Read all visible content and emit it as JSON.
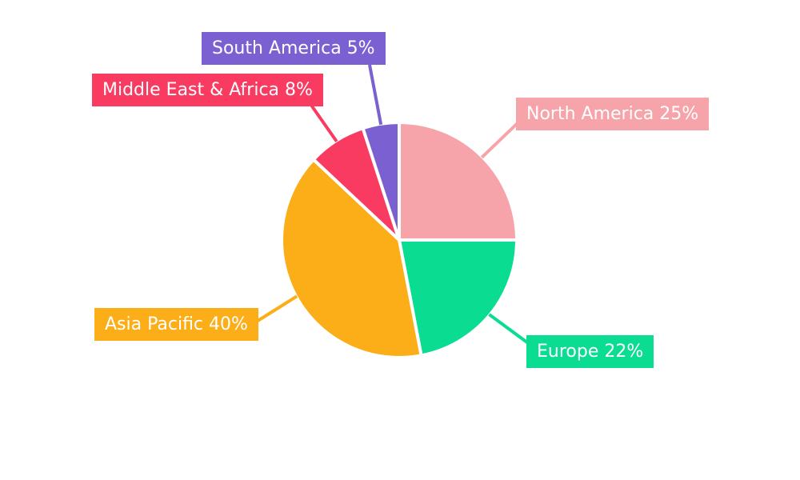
{
  "page": {
    "background_color": "#ffffff",
    "title": ""
  },
  "chart_data": {
    "type": "pie",
    "title": "",
    "unit": "%",
    "start_angle_deg": 0,
    "direction": "clockwise",
    "legend_position": "none",
    "label_style": "callout-boxes-with-leader-lines",
    "label_text_color": "#ffffff",
    "slice_gap_color": "#ffffff",
    "categories": [
      "North America",
      "Europe",
      "Asia Pacific",
      "Middle East & Africa",
      "South America"
    ],
    "values": [
      25,
      22,
      40,
      8,
      5
    ],
    "segments": [
      {
        "label": "North America",
        "value": 25,
        "display": "North America 25%",
        "color": "#F6A4A9"
      },
      {
        "label": "Europe",
        "value": 22,
        "display": "Europe 22%",
        "color": "#0ADD92"
      },
      {
        "label": "Asia Pacific",
        "value": 40,
        "display": "Asia Pacific 40%",
        "color": "#FBAE17"
      },
      {
        "label": "Middle East & Africa",
        "value": 8,
        "display": "Middle East & Africa 8%",
        "color": "#F93B62"
      },
      {
        "label": "South America",
        "value": 5,
        "display": "South America 5%",
        "color": "#7B60D1"
      }
    ]
  }
}
